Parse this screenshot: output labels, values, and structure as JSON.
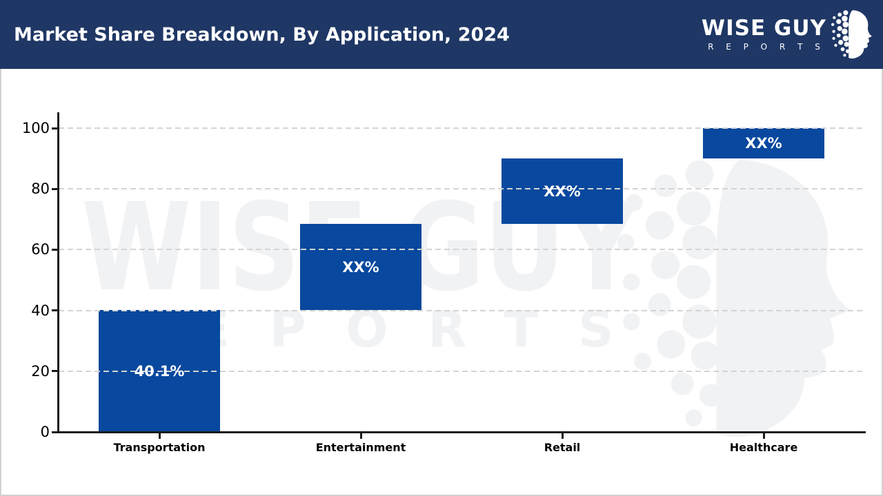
{
  "header": {
    "title": "Market Share Breakdown, By Application, 2024",
    "logo": {
      "line1": "WISE GUY",
      "line2": "R E P O R T S"
    }
  },
  "watermark": {
    "line1": "WISE GUY",
    "line2": "REPORTS"
  },
  "chart_data": {
    "type": "bar",
    "subtype": "waterfall",
    "title": "Market Share Breakdown, By Application, 2024",
    "categories": [
      "Transportation",
      "Entertainment",
      "Retail",
      "Healthcare"
    ],
    "bars": [
      {
        "category": "Transportation",
        "label": "40.1%",
        "start": 0,
        "end": 40.1
      },
      {
        "category": "Entertainment",
        "label": "XX%",
        "start": 40.1,
        "end": 68.5
      },
      {
        "category": "Retail",
        "label": "XX%",
        "start": 68.5,
        "end": 90
      },
      {
        "category": "Healthcare",
        "label": "XX%",
        "start": 90,
        "end": 100
      }
    ],
    "yticks": [
      0,
      20,
      40,
      60,
      80,
      100
    ],
    "ylim": [
      0,
      105
    ],
    "xlabel": "",
    "ylabel": "",
    "legend": "none",
    "grid": "horizontal-dashed",
    "colors": {
      "bar": "#08489e",
      "bar_label": "#ffffff",
      "axis": "#1b1b1b",
      "grid": "#d4d4d4",
      "header_bg": "#1f3765",
      "watermark": "#f1f2f4"
    }
  }
}
